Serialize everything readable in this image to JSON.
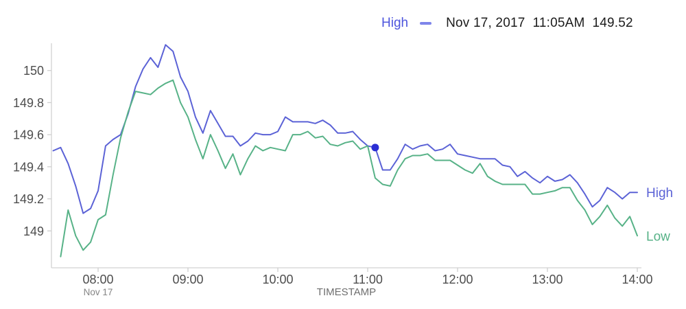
{
  "legend": {
    "series_label": "High",
    "dash": "—",
    "readout": "Nov 17, 2017  11:05AM  149.52"
  },
  "chart_data": {
    "type": "line",
    "title": "",
    "xlabel": "TIMESTAMP",
    "ylabel": "",
    "grid": false,
    "legend_position": "end-of-line-right",
    "x_tick_labels": [
      "08:00",
      "09:00",
      "10:00",
      "11:00",
      "12:00",
      "13:00",
      "14:00"
    ],
    "x_tick_sublabels": [
      "Nov 17",
      "",
      "",
      "",
      "",
      "",
      ""
    ],
    "y_tick_labels": [
      "150",
      "149.8",
      "149.6",
      "149.4",
      "149.2",
      "149"
    ],
    "ylim": [
      148.77,
      150.17
    ],
    "x_range_minutes": [
      450,
      840
    ],
    "series": [
      {
        "name": "High",
        "color": "#5b62d6",
        "start_time": "07:30",
        "start_minutes": 450,
        "interval_minutes": 5,
        "values": [
          149.5,
          149.52,
          149.42,
          149.28,
          149.11,
          149.14,
          149.25,
          149.53,
          149.57,
          149.6,
          149.73,
          149.9,
          150.01,
          150.08,
          150.02,
          150.16,
          150.12,
          149.96,
          149.87,
          149.71,
          149.61,
          149.75,
          149.67,
          149.59,
          149.59,
          149.53,
          149.56,
          149.61,
          149.6,
          149.6,
          149.62,
          149.71,
          149.68,
          149.68,
          149.68,
          149.67,
          149.69,
          149.66,
          149.61,
          149.61,
          149.62,
          149.57,
          149.53,
          149.52,
          149.38,
          149.38,
          149.45,
          149.54,
          149.51,
          149.53,
          149.54,
          149.5,
          149.51,
          149.54,
          149.48,
          149.47,
          149.46,
          149.45,
          149.45,
          149.45,
          149.41,
          149.4,
          149.34,
          149.37,
          149.33,
          149.3,
          149.34,
          149.31,
          149.32,
          149.35,
          149.3,
          149.23,
          149.15,
          149.19,
          149.27,
          149.24,
          149.2,
          149.24,
          149.24
        ]
      },
      {
        "name": "Low",
        "color": "#57b287",
        "start_time": "07:35",
        "start_minutes": 455,
        "interval_minutes": 5,
        "values": [
          148.84,
          149.13,
          148.97,
          148.88,
          148.93,
          149.07,
          149.1,
          149.35,
          149.58,
          149.74,
          149.87,
          149.86,
          149.85,
          149.89,
          149.92,
          149.94,
          149.8,
          149.71,
          149.57,
          149.45,
          149.6,
          149.5,
          149.39,
          149.48,
          149.35,
          149.45,
          149.53,
          149.5,
          149.52,
          149.51,
          149.5,
          149.6,
          149.6,
          149.62,
          149.58,
          149.59,
          149.54,
          149.53,
          149.55,
          149.56,
          149.51,
          149.53,
          149.33,
          149.29,
          149.28,
          149.38,
          149.45,
          149.47,
          149.47,
          149.48,
          149.44,
          149.44,
          149.44,
          149.41,
          149.38,
          149.36,
          149.42,
          149.34,
          149.31,
          149.29,
          149.29,
          149.29,
          149.29,
          149.23,
          149.23,
          149.24,
          149.25,
          149.27,
          149.27,
          149.19,
          149.13,
          149.04,
          149.09,
          149.16,
          149.08,
          149.03,
          149.09,
          148.97
        ]
      }
    ],
    "highlight_point": {
      "series": "High",
      "date": "Nov 17, 2017",
      "time": "11:05AM",
      "time_minutes": 665,
      "value": 149.52,
      "color": "#2b2ed4"
    }
  },
  "colors": {
    "axis_line": "#d2d2d2",
    "tick_mark": "#cfcfcf",
    "high_line": "#5b62d6",
    "low_line": "#57b287",
    "highlight_dot": "#2b2ed4"
  }
}
